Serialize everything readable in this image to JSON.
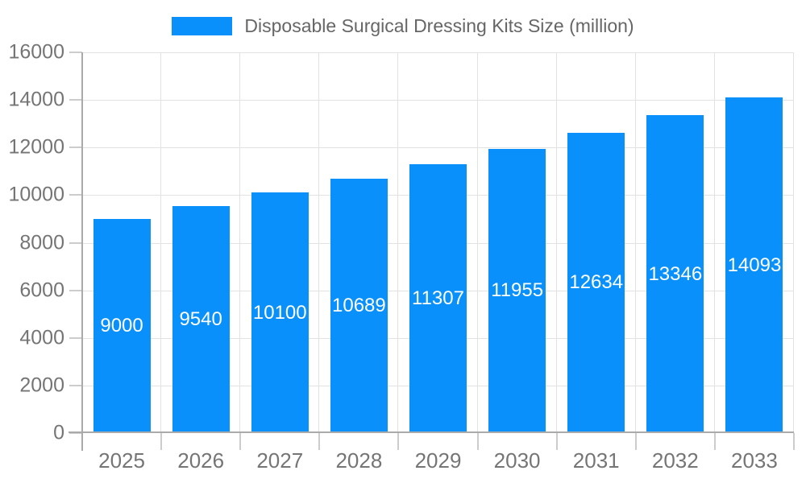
{
  "legend": {
    "label": "Disposable Surgical Dressing Kits Size (million)"
  },
  "chart_data": {
    "type": "bar",
    "title": "Disposable Surgical Dressing Kits Size (million)",
    "categories": [
      "2025",
      "2026",
      "2027",
      "2028",
      "2029",
      "2030",
      "2031",
      "2032",
      "2033"
    ],
    "series": [
      {
        "name": "Disposable Surgical Dressing Kits Size (million)",
        "values": [
          9000,
          9540,
          10100,
          10689,
          11307,
          11955,
          12634,
          13346,
          14093
        ]
      }
    ],
    "values": [
      9000,
      9540,
      10100,
      10689,
      11307,
      11955,
      12634,
      13346,
      14093
    ],
    "xlabel": "",
    "ylabel": "",
    "ylim": [
      0,
      16000
    ],
    "ytick_step": 2000,
    "yticks": [
      0,
      2000,
      4000,
      6000,
      8000,
      10000,
      12000,
      14000,
      16000
    ],
    "yticklabels": [
      "0",
      "2000",
      "4000",
      "6000",
      "8000",
      "10000",
      "12000",
      "14000",
      "16000"
    ],
    "grid": true,
    "legend_position": "top-center",
    "value_labels": "inside-center"
  },
  "colors": {
    "bar": "#0990fa",
    "grid": "#e2e2e2",
    "axis": "#aaaaaa",
    "tick": "#cccccc",
    "axis_label": "#757575",
    "legend_text": "#666666",
    "value_label": "#ffffff",
    "background": "#ffffff"
  }
}
